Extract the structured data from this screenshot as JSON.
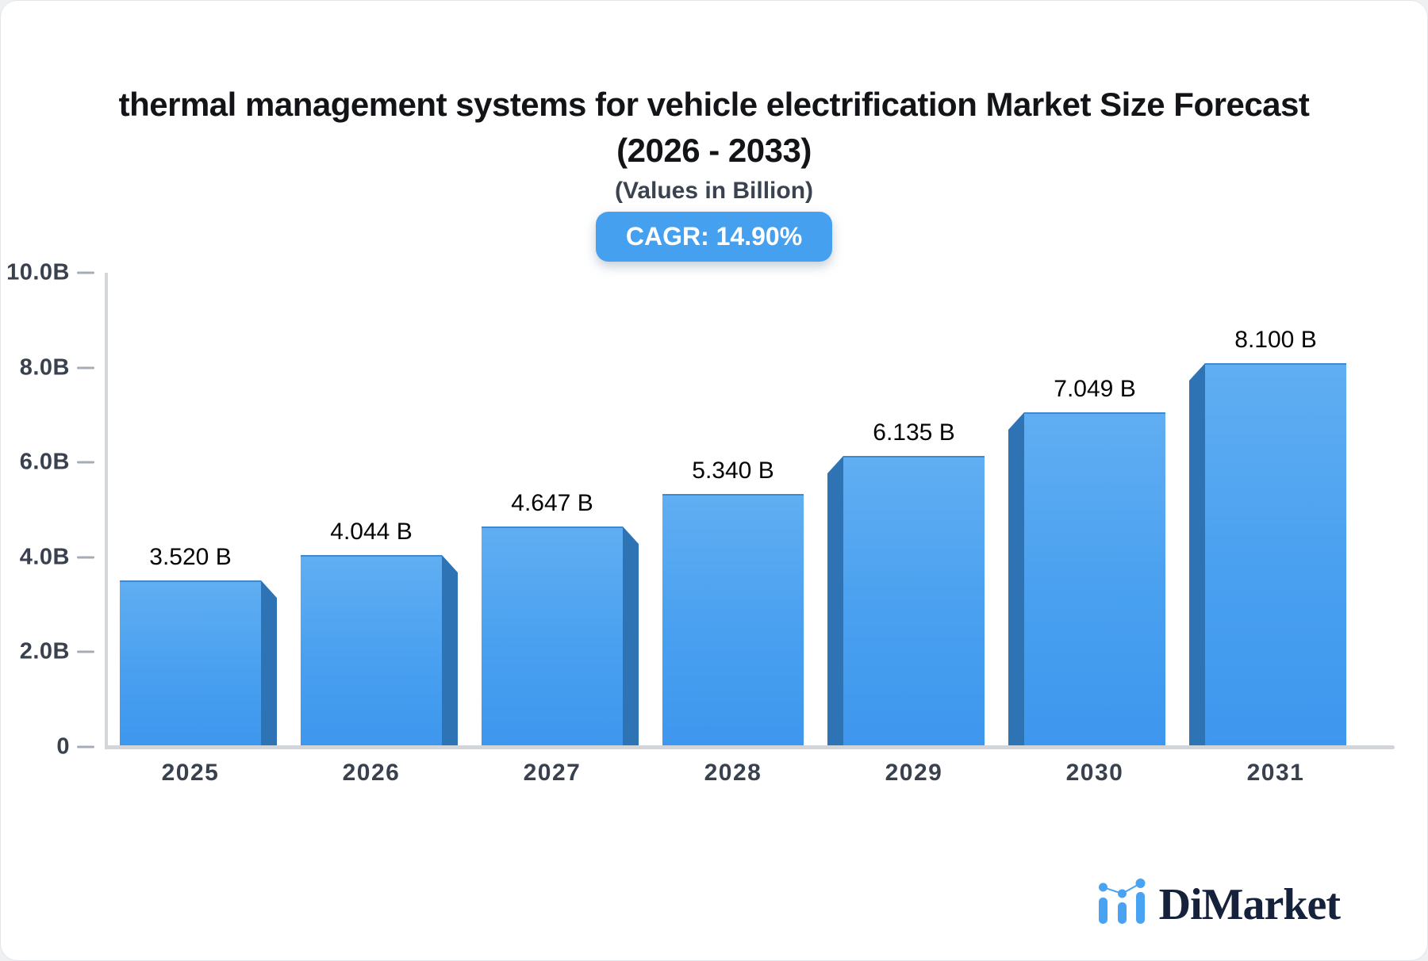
{
  "header": {
    "title_line1": "thermal management systems for vehicle electrification Market Size Forecast",
    "title_line2": "(2026 - 2033)",
    "subtitle": "(Values in Billion)",
    "cagr_badge": "CAGR: 14.90%"
  },
  "logo": {
    "text": "DiMarket",
    "icon": "mini-bar-chart-icon"
  },
  "colors": {
    "bar_gradient_top": "#60aef2",
    "bar_gradient_bottom": "#3e97ee",
    "bar_side_3d": "#2e74b4",
    "badge_background": "#45a0f0",
    "badge_text": "#ffffff",
    "axis_gray": "#d3d6da",
    "tick_gray": "#a6acb5",
    "axis_label_color": "#39414e",
    "title_color": "#121417",
    "logo_navy": "#16223c",
    "logo_blue": "#4aa2f3"
  },
  "chart_data": {
    "type": "bar",
    "title": "thermal management systems for vehicle electrification Market Size Forecast (2026 - 2033)",
    "subtitle": "(Values in Billion)",
    "cagr_percent": 14.9,
    "categories": [
      "2025",
      "2026",
      "2027",
      "2028",
      "2029",
      "2030",
      "2031"
    ],
    "values": [
      3.52,
      4.044,
      4.647,
      5.34,
      6.135,
      7.049,
      8.1
    ],
    "value_labels": [
      "3.520 B",
      "4.044 B",
      "4.647 B",
      "5.340 B",
      "6.135 B",
      "7.049 B",
      "8.100 B"
    ],
    "xlabel": "",
    "ylabel": "",
    "ylim": [
      0,
      10
    ],
    "y_ticks": [
      "10.0B",
      "8.0B",
      "6.0B",
      "4.0B",
      "2.0B",
      "0"
    ],
    "grid": false,
    "legend": "none",
    "bar_3d_side": [
      "right",
      "right",
      "right",
      "none",
      "left",
      "left",
      "left"
    ]
  }
}
